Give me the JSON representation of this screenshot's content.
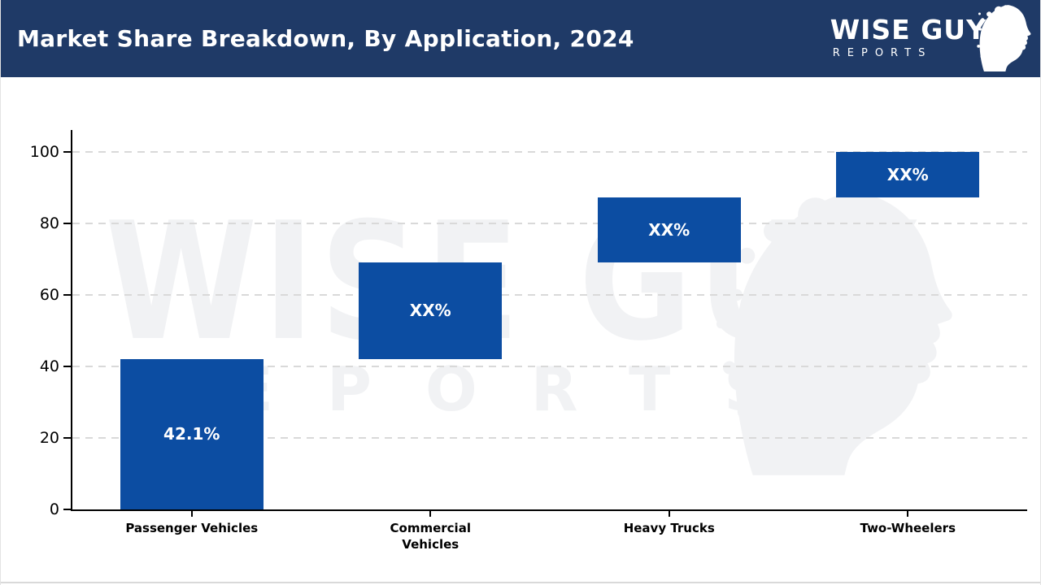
{
  "header": {
    "title": "Market Share Breakdown, By Application, 2024",
    "logo": {
      "brand_top": "WISE GUY",
      "brand_bottom": "REPORTS",
      "head_icon": "dotted-head-profile"
    }
  },
  "watermark": {
    "line1": "WISE GUY",
    "line2": "REPORTS",
    "head_icon": "dotted-head-profile"
  },
  "colors": {
    "header_bg": "#1f3a67",
    "bar": "#0c4da2",
    "grid": "#d9d9d9",
    "watermark": "#f1f2f4",
    "axis": "#000000",
    "bar_label": "#ffffff"
  },
  "chart_data": {
    "type": "bar",
    "subtype": "waterfall",
    "title": "Market Share Breakdown, By Application, 2024",
    "categories": [
      "Passenger Vehicles",
      "Commercial\nVehicles",
      "Heavy Trucks",
      "Two-Wheelers"
    ],
    "waterfall": {
      "starts": [
        0,
        42.1,
        69.2,
        87.2
      ],
      "ends": [
        42.1,
        69.2,
        87.2,
        100
      ],
      "segment_values": [
        42.1,
        27.1,
        18.0,
        12.8
      ]
    },
    "bar_labels": [
      "42.1%",
      "XX%",
      "XX%",
      "XX%"
    ],
    "yticks": [
      0,
      20,
      40,
      60,
      80,
      100
    ],
    "ylim": [
      0,
      100
    ],
    "xlabel": "",
    "ylabel": "",
    "grid": "dashed-horizontal",
    "legend": "none"
  }
}
